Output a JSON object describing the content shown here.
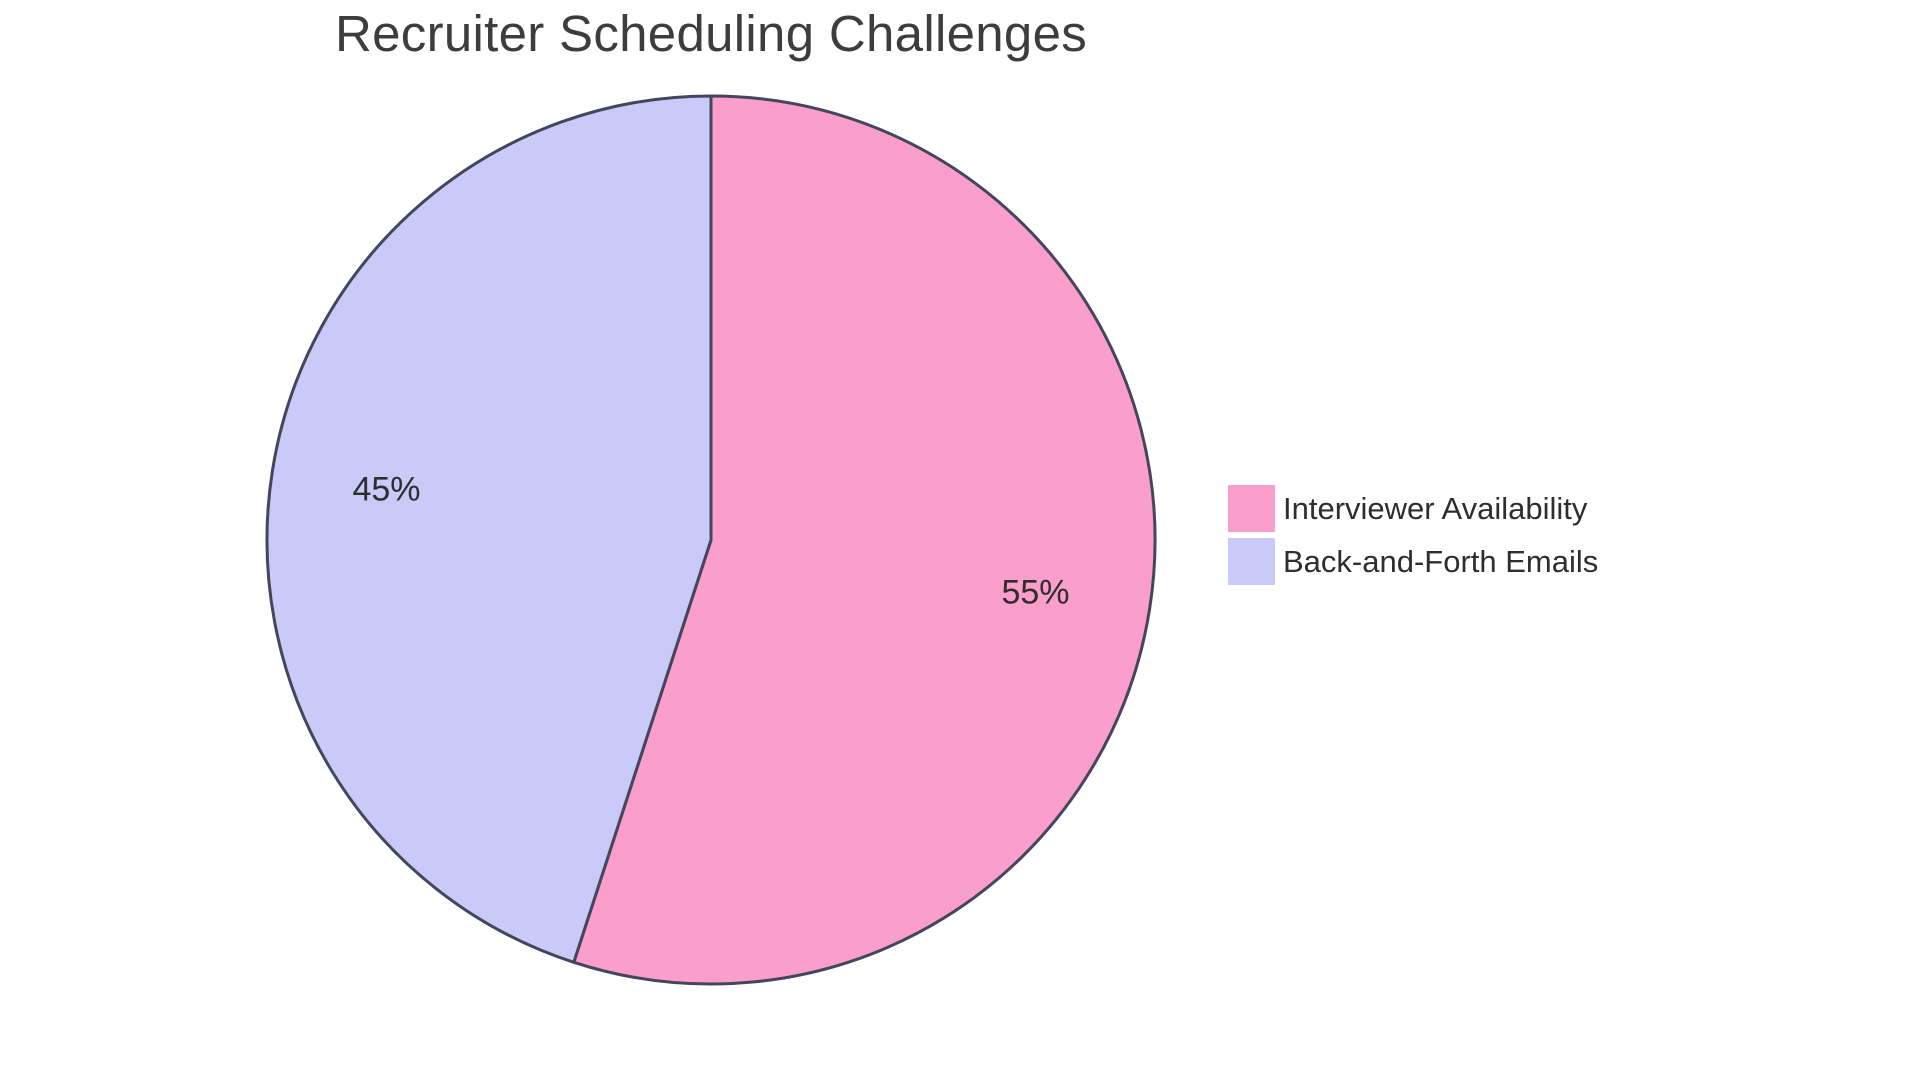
{
  "chart_data": {
    "type": "pie",
    "title": "Recruiter Scheduling Challenges",
    "labels": [
      "Interviewer Availability",
      "Back-and-Forth Emails"
    ],
    "values": [
      55,
      45
    ],
    "value_labels": [
      "55%",
      "45%"
    ],
    "colors": [
      "#FA9ECB",
      "#C9CAF8"
    ],
    "slice_border_color": "#45455C",
    "slice_border_width": 3,
    "start_angle": "top",
    "direction": "clockwise",
    "legend_position": "right",
    "value_label_color": "#2E2E2E",
    "value_label_radius_ratio": 0.74
  }
}
